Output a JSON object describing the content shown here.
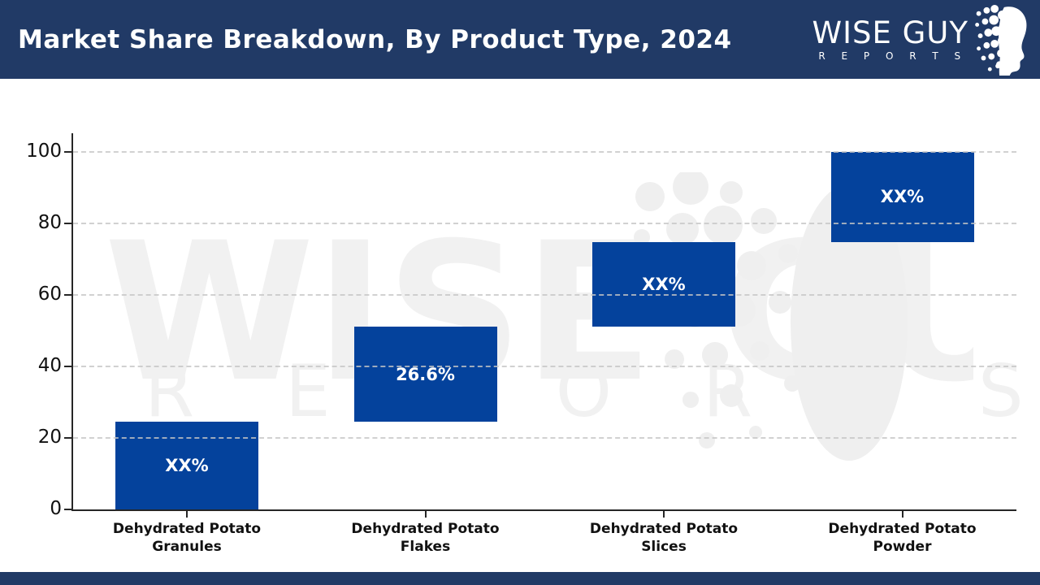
{
  "header": {
    "title": "Market Share Breakdown, By Product Type, 2024",
    "background": "#213A66"
  },
  "logo": {
    "line1": "WISE GUY",
    "line2": "R E P O R T S"
  },
  "watermark": {
    "line1": "WISE GUY",
    "line2": "R E P O R T S"
  },
  "chart_data": {
    "type": "bar",
    "variant": "floating-waterfall",
    "title": "Market Share Breakdown, By Product Type, 2024",
    "categories": [
      "Dehydrated Potato\nGranules",
      "Dehydrated Potato\nFlakes",
      "Dehydrated Potato\nSlices",
      "Dehydrated Potato\nPowder"
    ],
    "segments": [
      {
        "category": "Dehydrated Potato Granules",
        "start": 0,
        "end": 24.5,
        "label": "XX%"
      },
      {
        "category": "Dehydrated Potato Flakes",
        "start": 24.5,
        "end": 51.1,
        "label": "26.6%",
        "value": 26.6
      },
      {
        "category": "Dehydrated Potato Slices",
        "start": 51.1,
        "end": 74.8,
        "label": "XX%"
      },
      {
        "category": "Dehydrated Potato Powder",
        "start": 74.8,
        "end": 100,
        "label": "XX%"
      }
    ],
    "yticks": [
      0,
      20,
      40,
      60,
      80,
      100
    ],
    "ylim": [
      0,
      105
    ],
    "grid": true,
    "legend": false,
    "bar_color": "#04429C",
    "bar_label_color": "#ffffff"
  },
  "footer": {
    "background": "#213A66"
  }
}
